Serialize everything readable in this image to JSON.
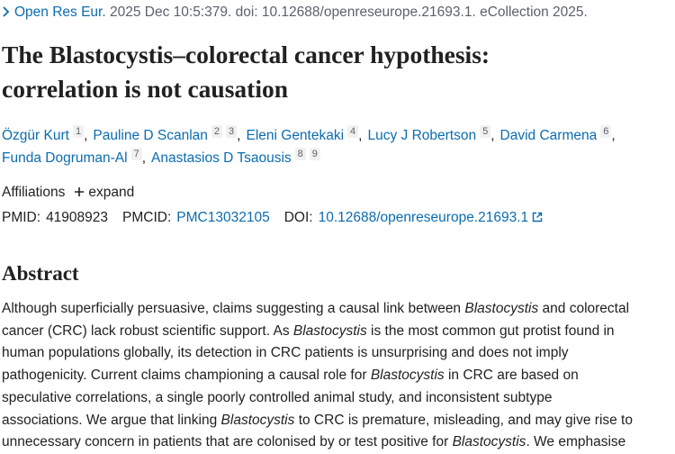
{
  "citation": {
    "journal": "Open Res Eur.",
    "details": "2025 Dec 10:5:379. doi: 10.12688/openreseurope.21693.1. eCollection 2025."
  },
  "title": [
    "The Blastocystis–colorectal cancer hypothesis:",
    "correlation is not causation"
  ],
  "authors": [
    [
      {
        "name": "Özgür Kurt",
        "affiliations": [
          1
        ],
        "separator": ","
      },
      {
        "name": "Pauline D Scanlan",
        "affiliations": [
          2,
          3
        ],
        "separator": ","
      },
      {
        "name": "Eleni Gentekaki",
        "affiliations": [
          4
        ],
        "separator": ","
      },
      {
        "name": "Lucy J Robertson",
        "affiliations": [
          5
        ],
        "separator": ","
      },
      {
        "name": "David Carmena",
        "affiliations": [
          6
        ],
        "separator": ","
      }
    ],
    [
      {
        "name": "Funda Dogruman-Al",
        "affiliations": [
          7
        ],
        "separator": ","
      },
      {
        "name": "Anastasios D Tsaousis",
        "affiliations": [
          8,
          9
        ]
      }
    ]
  ],
  "affiliations": {
    "label": "Affiliations",
    "action": "expand"
  },
  "identifiers": [
    {
      "label": "PMID:",
      "value": "41908923"
    },
    {
      "label": "PMCID:",
      "value": "PMC13032105"
    },
    {
      "label": "DOI:",
      "value": "10.12688/openreseurope.21693.1"
    }
  ],
  "abstract": {
    "heading": "Abstract",
    "lines": [
      [
        {
          "text": "Although superficially persuasive, claims suggesting a causal link between "
        },
        {
          "text": "Blastocystis",
          "italic": true
        },
        {
          "text": " and colorectal"
        }
      ],
      [
        {
          "text": "cancer (CRC) lack robust scientific support. As "
        },
        {
          "text": "Blastocystis",
          "italic": true
        },
        {
          "text": " is the most common gut protist found in"
        }
      ],
      [
        {
          "text": "human populations globally, its detection in CRC patients is unsurprising and does not imply"
        }
      ],
      [
        {
          "text": "pathogenicity. Current claims championing a causal role for "
        },
        {
          "text": "Blastocystis",
          "italic": true
        },
        {
          "text": " in CRC are based on"
        }
      ],
      [
        {
          "text": "speculative correlations, a single poorly controlled animal study, and inconsistent subtype"
        }
      ],
      [
        {
          "text": "associations. We argue that linking "
        },
        {
          "text": "Blastocystis",
          "italic": true
        },
        {
          "text": " to CRC is premature, misleading, and may give rise to"
        }
      ],
      [
        {
          "text": "unnecessary concern in patients that are colonised by or test positive for "
        },
        {
          "text": "Blastocystis",
          "italic": true
        },
        {
          "text": ". We emphasise"
        }
      ]
    ]
  }
}
